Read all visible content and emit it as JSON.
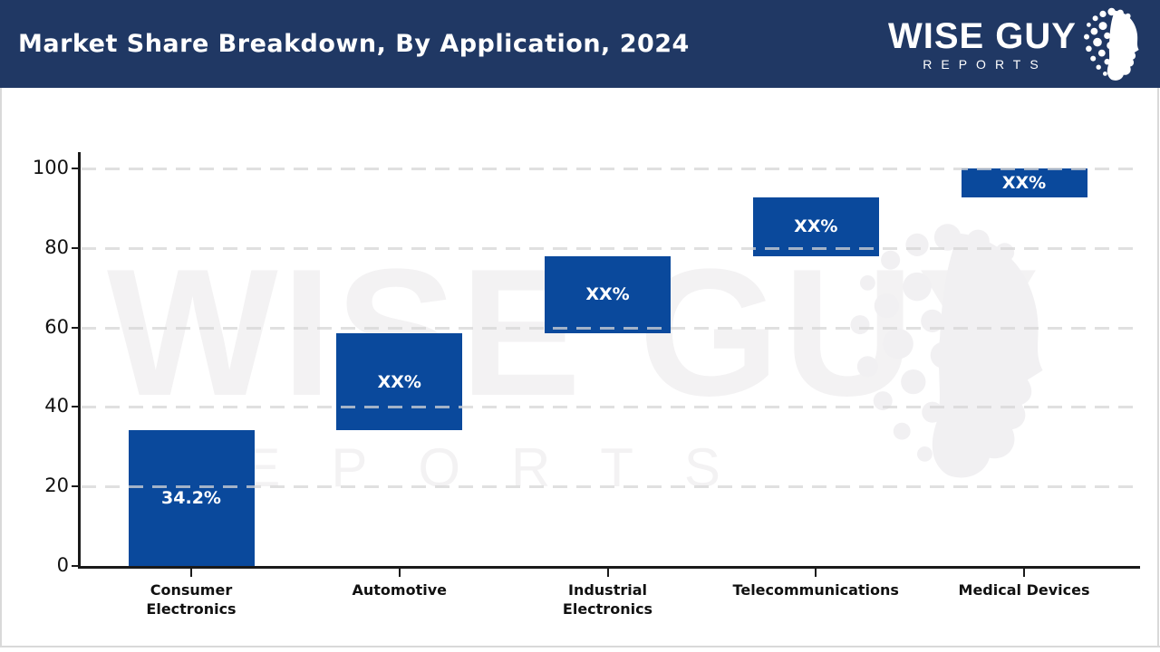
{
  "header": {
    "title": "Market Share Breakdown, By Application, 2024",
    "background_color": "#203864",
    "logo": {
      "line1": "WISE GUY",
      "line2": "REPORTS"
    }
  },
  "watermark": {
    "line1": "WISE GUY",
    "line2": "REPORTS"
  },
  "chart_data": {
    "type": "bar",
    "subtype": "waterfall-cumulative",
    "title": "Market Share Breakdown, By Application, 2024",
    "xlabel": "",
    "ylabel": "",
    "ylim": [
      0,
      100
    ],
    "yticks": [
      0,
      20,
      40,
      60,
      80,
      100
    ],
    "grid": "horizontal dashed, drawn over bars",
    "legend": "none",
    "bar_color": "#0a499c",
    "bar_label_color": "#ffffff",
    "segments": [
      {
        "category": "Consumer Electronics",
        "label_lines": [
          "Consumer",
          "Electronics"
        ],
        "start": 0,
        "end": 34.2,
        "bar_label": "34.2%"
      },
      {
        "category": "Automotive",
        "label_lines": [
          "Automotive"
        ],
        "start": 34.2,
        "end": 58.5,
        "bar_label": "XX%"
      },
      {
        "category": "Industrial Electronics",
        "label_lines": [
          "Industrial",
          "Electronics"
        ],
        "start": 58.5,
        "end": 78.0,
        "bar_label": "XX%"
      },
      {
        "category": "Telecommunications",
        "label_lines": [
          "Telecommunications"
        ],
        "start": 78.0,
        "end": 92.8,
        "bar_label": "XX%"
      },
      {
        "category": "Medical Devices",
        "label_lines": [
          "Medical Devices"
        ],
        "start": 92.8,
        "end": 100.0,
        "bar_label": "XX%"
      }
    ]
  }
}
